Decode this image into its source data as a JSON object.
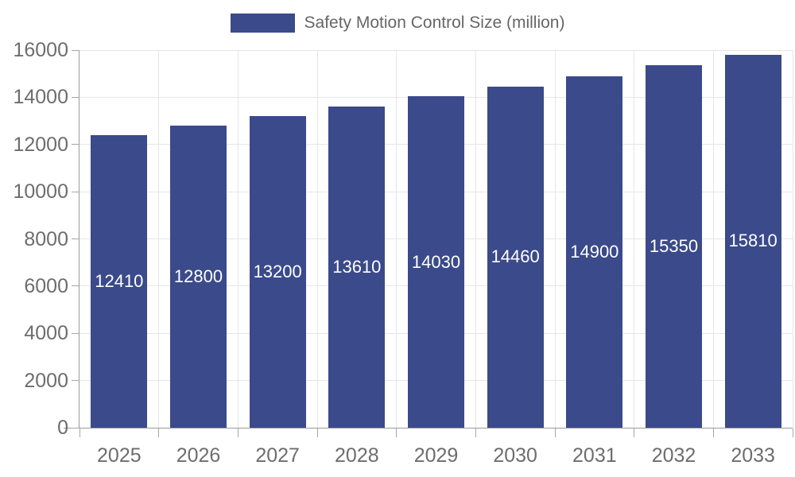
{
  "chart": {
    "colors": {
      "bar": "#3a4a8a",
      "bar_label": "#ffffff",
      "grid": "#e6e6e6",
      "axis_line": "#9a9a9a",
      "tick": "#a6a6a6",
      "axis_text": "#6d6d6d",
      "legend_text": "#666666",
      "background": "#ffffff"
    }
  },
  "chart_data": {
    "type": "bar",
    "title": "Safety Motion Control Size (million)",
    "legend": [
      "Safety Motion Control Size (million)"
    ],
    "legend_position": "top",
    "categories": [
      "2025",
      "2026",
      "2027",
      "2028",
      "2029",
      "2030",
      "2031",
      "2032",
      "2033"
    ],
    "series": [
      {
        "name": "Safety Motion Control Size (million)",
        "values": [
          12410,
          12800,
          13200,
          13610,
          14030,
          14460,
          14900,
          15350,
          15810
        ]
      }
    ],
    "bar_labels": [
      "12410",
      "12800",
      "13200",
      "13610",
      "14030",
      "14460",
      "14900",
      "15350",
      "15810"
    ],
    "xlabel": "",
    "ylabel": "",
    "ylim": [
      0,
      16000
    ],
    "ytick_step": 2000,
    "yticks": [
      "0",
      "2000",
      "4000",
      "6000",
      "8000",
      "10000",
      "12000",
      "14000",
      "16000"
    ],
    "grid": true
  }
}
